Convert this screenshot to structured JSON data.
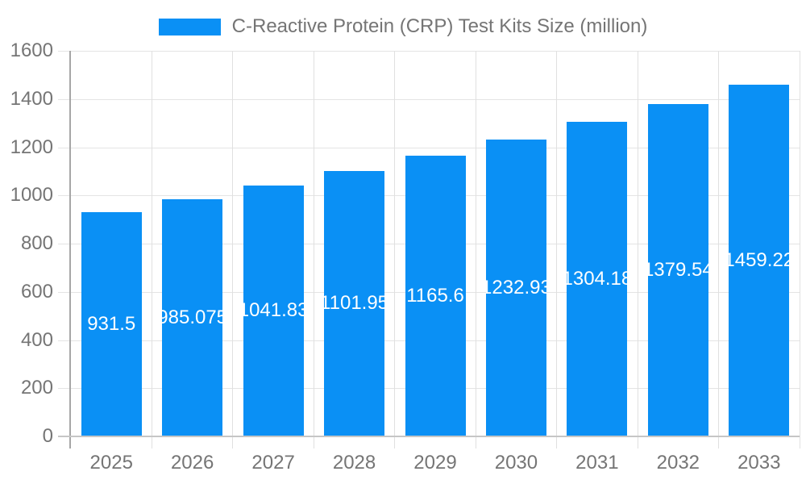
{
  "chart_data": {
    "type": "bar",
    "title": "C-Reactive Protein (CRP) Test Kits Size (million)",
    "legend_position": "top",
    "categories": [
      "2025",
      "2026",
      "2027",
      "2028",
      "2029",
      "2030",
      "2031",
      "2032",
      "2033"
    ],
    "series": [
      {
        "name": "C-Reactive Protein (CRP) Test Kits Size (million)",
        "values": [
          931.5,
          985.075,
          1041.83,
          1101.95,
          1165.6,
          1232.93,
          1304.18,
          1379.54,
          1459.22
        ]
      }
    ],
    "bar_labels": [
      "931.5",
      "985.075",
      "1041.83",
      "1101.95",
      "1165.6",
      "1232.93",
      "1304.18",
      "1379.54",
      "1459.22"
    ],
    "xlabel": "",
    "ylabel": "",
    "ylim": [
      0,
      1600
    ],
    "ytick_step": 200,
    "yticks": [
      "0",
      "200",
      "400",
      "600",
      "800",
      "1000",
      "1200",
      "1400",
      "1600"
    ],
    "grid": true,
    "colors": {
      "bar": "#0a90f5",
      "bar_label_text": "#ffffff",
      "axis_text": "#757575",
      "gridline": "#e4e4e4",
      "axis_line": "#a6a6a6",
      "baseline": "#c6c6c6",
      "background": "#ffffff"
    }
  }
}
